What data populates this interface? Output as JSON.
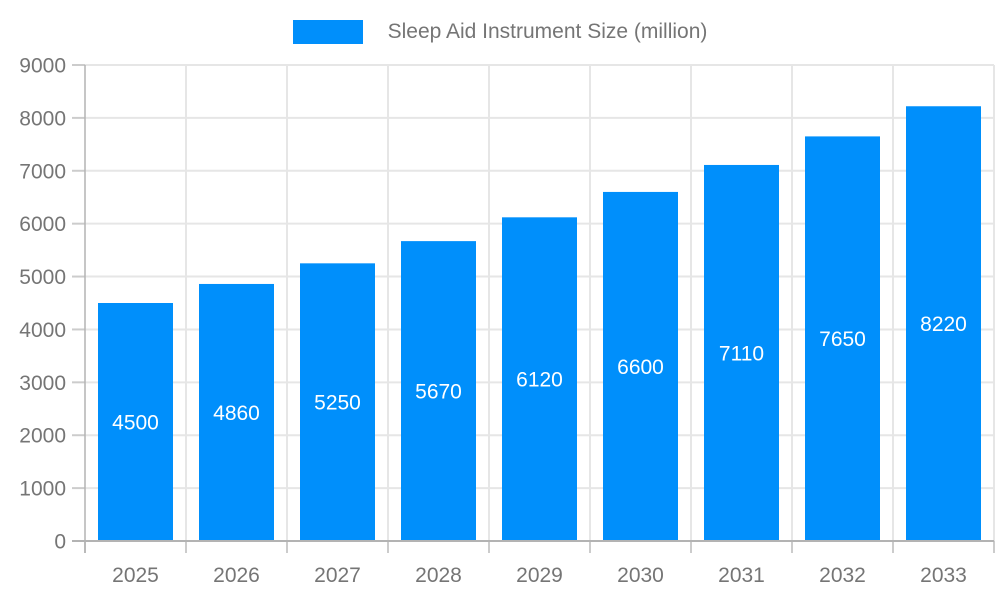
{
  "legend": {
    "label": "Sleep Aid Instrument Size (million)"
  },
  "colors": {
    "bar": "#008ffb",
    "axis_text": "#757575",
    "value_text": "#ffffff",
    "grid": "#e6e6e6",
    "tick": "#cccccc",
    "axis_line": "#b3b3b3",
    "background": "#ffffff"
  },
  "chart_data": {
    "type": "bar",
    "title": "Sleep Aid Instrument Size (million)",
    "categories": [
      "2025",
      "2026",
      "2027",
      "2028",
      "2029",
      "2030",
      "2031",
      "2032",
      "2033"
    ],
    "values": [
      4500,
      4860,
      5250,
      5670,
      6120,
      6600,
      7110,
      7650,
      8220
    ],
    "xlabel": "",
    "ylabel": "",
    "ylim": [
      0,
      9000
    ],
    "ytick_interval": 1000,
    "ytick_labels": [
      "0",
      "1000",
      "2000",
      "3000",
      "4000",
      "5000",
      "6000",
      "7000",
      "8000",
      "9000"
    ],
    "grid": true,
    "legend_position": "top",
    "bar_label_position": "inside-center"
  }
}
